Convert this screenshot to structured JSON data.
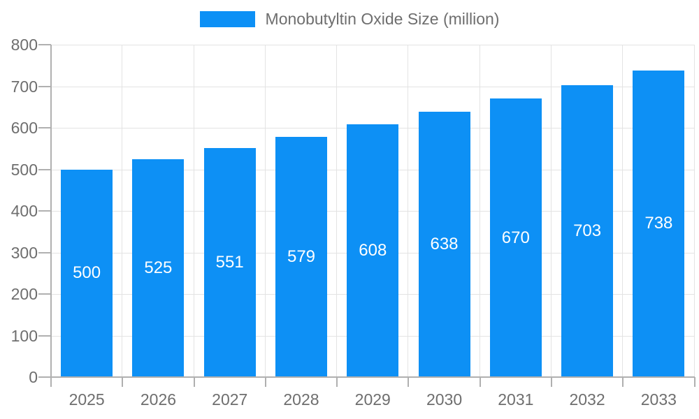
{
  "chart_data": {
    "type": "bar",
    "title": "",
    "legend_label": "Monobutyltin Oxide Size (million)",
    "legend_position": "top",
    "categories": [
      "2025",
      "2026",
      "2027",
      "2028",
      "2029",
      "2030",
      "2031",
      "2032",
      "2033"
    ],
    "series": [
      {
        "name": "Monobutyltin Oxide Size (million)",
        "values": [
          500,
          525,
          551,
          579,
          608,
          638,
          670,
          703,
          738
        ]
      }
    ],
    "xlabel": "",
    "ylabel": "",
    "ylim": [
      0,
      800
    ],
    "yticks": [
      0,
      100,
      200,
      300,
      400,
      500,
      600,
      700,
      800
    ],
    "grid": true,
    "bar_labels_shown": true,
    "colors": {
      "bar": "#0d90f5",
      "bar_label": "#ffffff",
      "axis_text": "#6e6e6e",
      "axis_line": "#b0b0b0",
      "gridline": "#e3e3e3",
      "background": "#ffffff"
    }
  }
}
